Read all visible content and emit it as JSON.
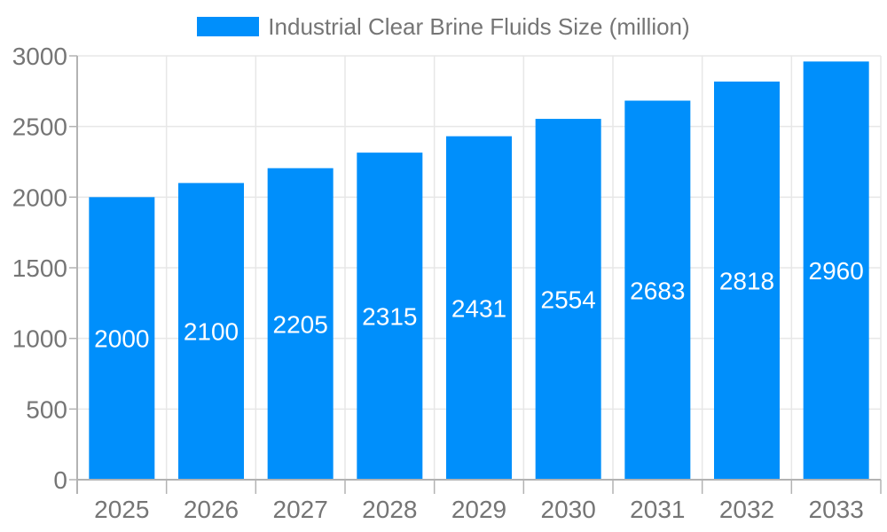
{
  "chart_data": {
    "type": "bar",
    "title": "Industrial Clear Brine Fluids Size (million)",
    "categories": [
      "2025",
      "2026",
      "2027",
      "2028",
      "2029",
      "2030",
      "2031",
      "2032",
      "2033"
    ],
    "series": [
      {
        "name": "Industrial Clear Brine Fluids Size (million)",
        "values": [
          2000,
          2100,
          2205,
          2315,
          2431,
          2554,
          2683,
          2818,
          2960
        ]
      }
    ],
    "xlabel": "",
    "ylabel": "",
    "ylim": [
      0,
      3000
    ],
    "yticks": [
      0,
      500,
      1000,
      1500,
      2000,
      2500,
      3000
    ],
    "bar_value_labels": true,
    "grid": true,
    "legend_position": "top",
    "colors": {
      "bar": "#008FFB",
      "axis_text": "#757575",
      "bar_label_text": "#ffffff",
      "gridline": "#e7e7e7",
      "axis_line": "#b3b3b3",
      "background": "#ffffff"
    }
  }
}
